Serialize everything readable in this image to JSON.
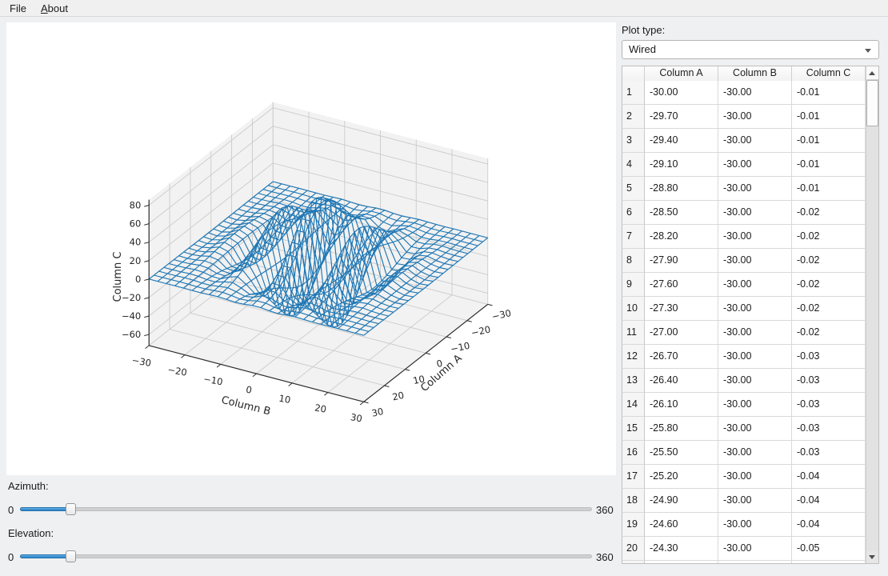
{
  "window": {
    "background": "#eff0f1"
  },
  "menu": {
    "items": [
      {
        "label": "File",
        "underline_first_char": false
      },
      {
        "label": "About",
        "underline_first_char": true
      }
    ]
  },
  "plot_type": {
    "label": "Plot type:",
    "selected": "Wired"
  },
  "table": {
    "columns": [
      "Column A",
      "Column B",
      "Column C"
    ],
    "rows": [
      [
        "1",
        "-30.00",
        "-30.00",
        "-0.01"
      ],
      [
        "2",
        "-29.70",
        "-30.00",
        "-0.01"
      ],
      [
        "3",
        "-29.40",
        "-30.00",
        "-0.01"
      ],
      [
        "4",
        "-29.10",
        "-30.00",
        "-0.01"
      ],
      [
        "5",
        "-28.80",
        "-30.00",
        "-0.01"
      ],
      [
        "6",
        "-28.50",
        "-30.00",
        "-0.02"
      ],
      [
        "7",
        "-28.20",
        "-30.00",
        "-0.02"
      ],
      [
        "8",
        "-27.90",
        "-30.00",
        "-0.02"
      ],
      [
        "9",
        "-27.60",
        "-30.00",
        "-0.02"
      ],
      [
        "10",
        "-27.30",
        "-30.00",
        "-0.02"
      ],
      [
        "11",
        "-27.00",
        "-30.00",
        "-0.02"
      ],
      [
        "12",
        "-26.70",
        "-30.00",
        "-0.03"
      ],
      [
        "13",
        "-26.40",
        "-30.00",
        "-0.03"
      ],
      [
        "14",
        "-26.10",
        "-30.00",
        "-0.03"
      ],
      [
        "15",
        "-25.80",
        "-30.00",
        "-0.03"
      ],
      [
        "16",
        "-25.50",
        "-30.00",
        "-0.03"
      ],
      [
        "17",
        "-25.20",
        "-30.00",
        "-0.04"
      ],
      [
        "18",
        "-24.90",
        "-30.00",
        "-0.04"
      ],
      [
        "19",
        "-24.60",
        "-30.00",
        "-0.04"
      ],
      [
        "20",
        "-24.30",
        "-30.00",
        "-0.05"
      ]
    ]
  },
  "sliders": [
    {
      "label": "Azimuth:",
      "min_label": "0",
      "max_label": "360",
      "fraction": 0.088
    },
    {
      "label": "Elevation:",
      "min_label": "0",
      "max_label": "360",
      "fraction": 0.088
    }
  ],
  "chart_data": {
    "type": "wireframe-3d",
    "title": "",
    "xlabel": "Column B",
    "ylabel": "Column A",
    "zlabel": "Column C",
    "x_ticks": [
      -30,
      -20,
      -10,
      0,
      10,
      20,
      30
    ],
    "y_ticks": [
      -30,
      -20,
      -10,
      0,
      10,
      20,
      30
    ],
    "z_ticks": [
      -60,
      -40,
      -20,
      0,
      20,
      40,
      60,
      80
    ],
    "x_tick_labels": [
      "−30",
      "−20",
      "−10",
      "0",
      "10",
      "20",
      "30"
    ],
    "y_tick_labels": [
      "−30",
      "−20",
      "−10",
      "0",
      "10",
      "20",
      "30"
    ],
    "z_tick_labels": [
      "−60",
      "−40",
      "−20",
      "0",
      "20",
      "40",
      "60",
      "80"
    ],
    "x_range": [
      -30,
      30
    ],
    "y_range": [
      -30,
      30
    ],
    "z_range": [
      -72,
      86
    ],
    "surface_formula": "C = 80*cos(0.55*B)*exp(-(A^2+B^2)/200)",
    "surface_params": {
      "amplitude": 80,
      "k": 0.55,
      "sigma2": 200,
      "grid_step": 2.4
    },
    "wire_color": "#1f77b4",
    "pane_color": "#f2f2f2",
    "grid_color": "#cbcbcb",
    "grid": true,
    "legend": null,
    "view": {
      "elev_deg": 27,
      "azim_deg": -60
    }
  }
}
